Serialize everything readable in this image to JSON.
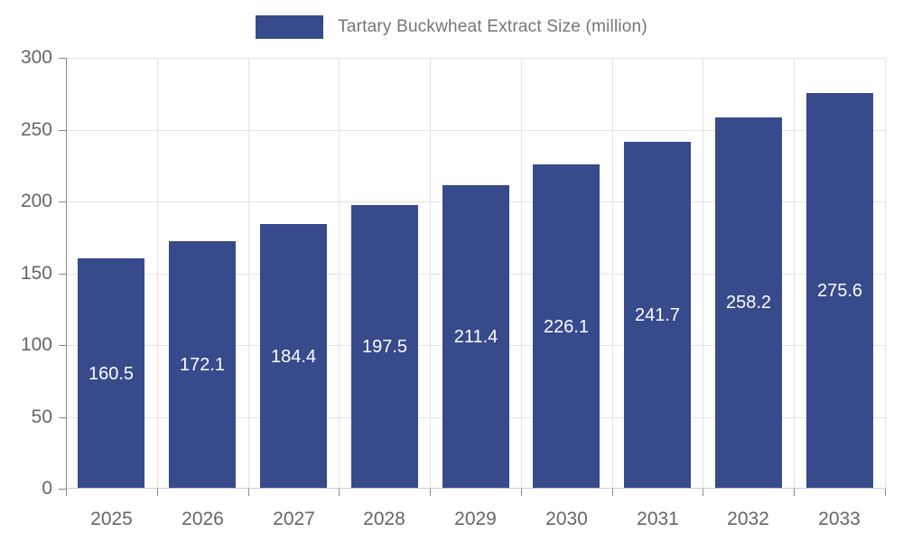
{
  "legend": {
    "label": "Tartary Buckwheat Extract Size (million)"
  },
  "chart_data": {
    "type": "bar",
    "title": "Tartary Buckwheat Extract Size (million)",
    "categories": [
      "2025",
      "2026",
      "2027",
      "2028",
      "2029",
      "2030",
      "2031",
      "2032",
      "2033"
    ],
    "values": [
      160.5,
      172.1,
      184.4,
      197.5,
      211.4,
      226.1,
      241.7,
      258.2,
      275.6
    ],
    "value_labels": [
      "160.5",
      "172.1",
      "184.4",
      "197.5",
      "211.4",
      "226.1",
      "241.7",
      "258.2",
      "275.6"
    ],
    "xlabel": "",
    "ylabel": "",
    "ylim": [
      0,
      300
    ],
    "yticks": [
      0,
      50,
      100,
      150,
      200,
      250,
      300
    ],
    "grid": true,
    "legend_position": "top",
    "colors": {
      "bar": "#374a8c",
      "grid": "#e3e3e6",
      "axis": "#8a8a8a",
      "bottom_line": "#c9c9ce",
      "tick_text": "#666666",
      "legend_text": "#757575",
      "value_label": "#ffffff"
    }
  }
}
